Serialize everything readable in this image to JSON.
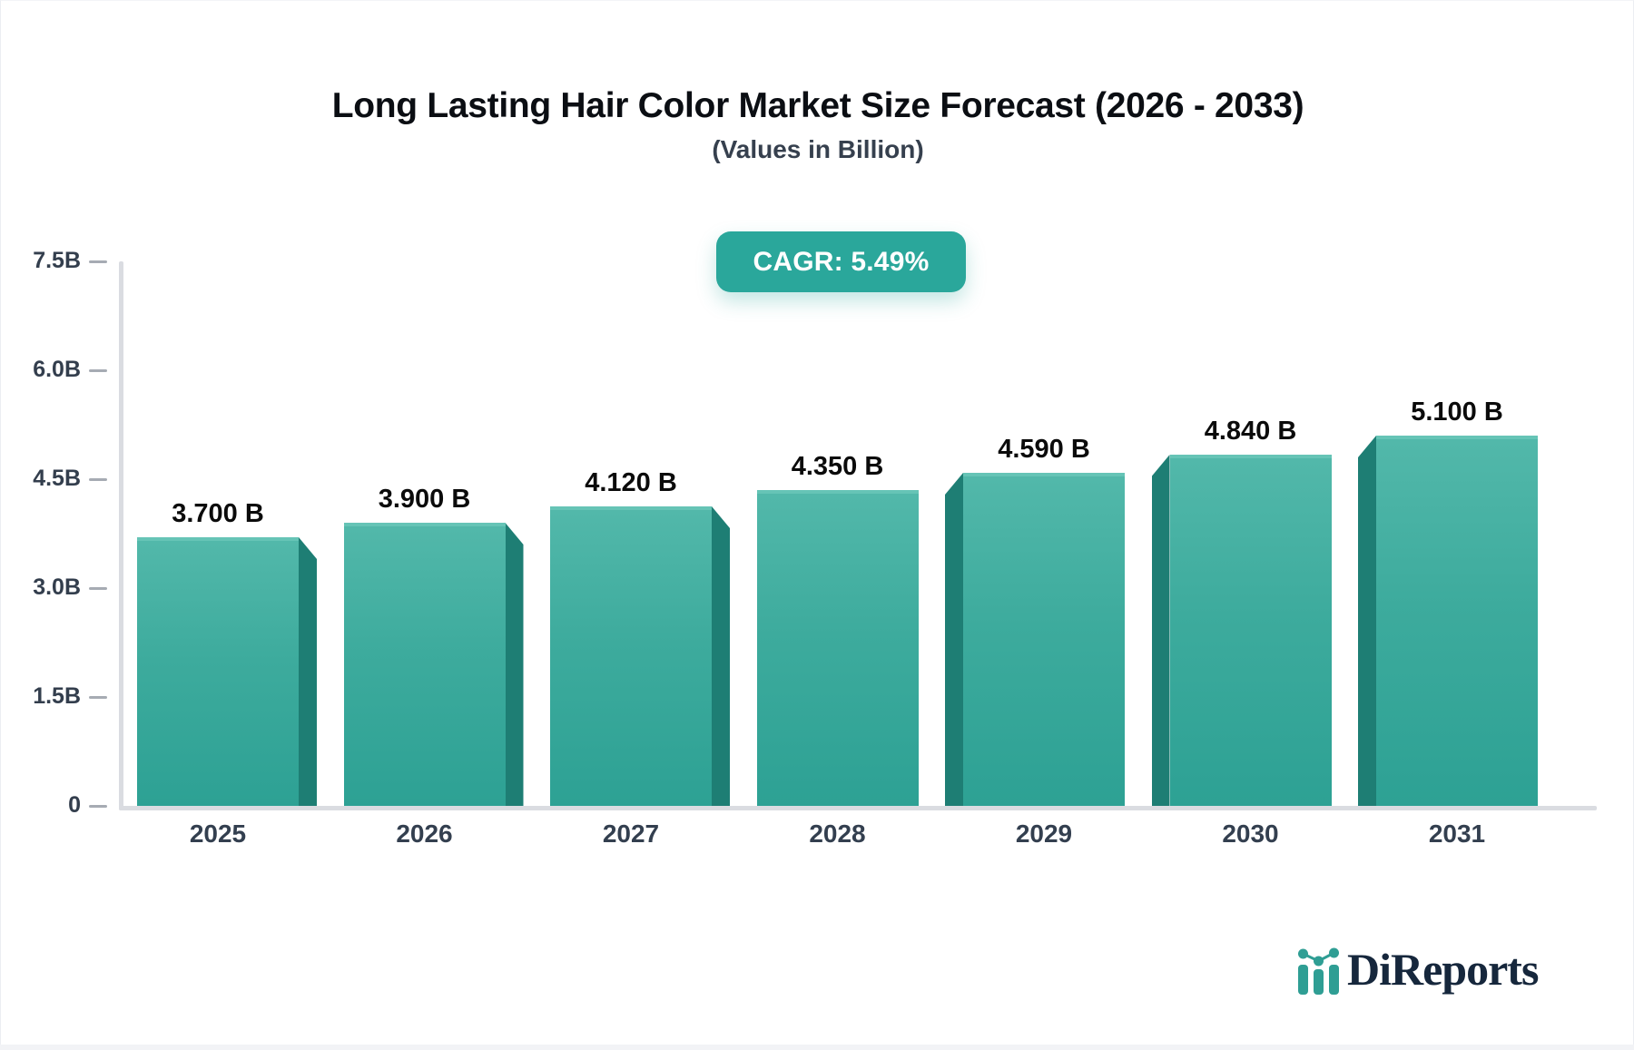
{
  "chart_data": {
    "type": "bar",
    "title": "Long Lasting Hair Color Market Size Forecast (2026 - 2033)",
    "subtitle": "(Values in Billion)",
    "badge_label": "CAGR: 5.49%",
    "categories": [
      "2025",
      "2026",
      "2027",
      "2028",
      "2029",
      "2030",
      "2031"
    ],
    "values": [
      3.7,
      3.9,
      4.12,
      4.35,
      4.59,
      4.84,
      5.1
    ],
    "bar_labels": [
      "3.700 B",
      "3.900 B",
      "4.120 B",
      "4.350 B",
      "4.590 B",
      "4.840 B",
      "5.100 B"
    ],
    "y_ticks": [
      {
        "label": "7.5B",
        "value": 7.5
      },
      {
        "label": "6.0B",
        "value": 6.0
      },
      {
        "label": "4.5B",
        "value": 4.5
      },
      {
        "label": "3.0B",
        "value": 3.0
      },
      {
        "label": "1.5B",
        "value": 1.5
      },
      {
        "label": "0",
        "value": 0
      }
    ],
    "ylim": [
      0,
      7.5
    ],
    "grid": false,
    "legend": false,
    "colors": {
      "bar_face_top": "#52b8aa",
      "bar_face_bottom": "#2da194",
      "bar_top_edge": "#66c4b6",
      "bar_side_dark": "#1e7e74",
      "badge_bg": "#2aa79b",
      "axis_line": "#dadce1",
      "tick_dash": "#a6abb3",
      "axis_text": "#333e4d",
      "title_text": "#0b0e13"
    }
  },
  "branding": {
    "logo_text": "DiReports"
  }
}
